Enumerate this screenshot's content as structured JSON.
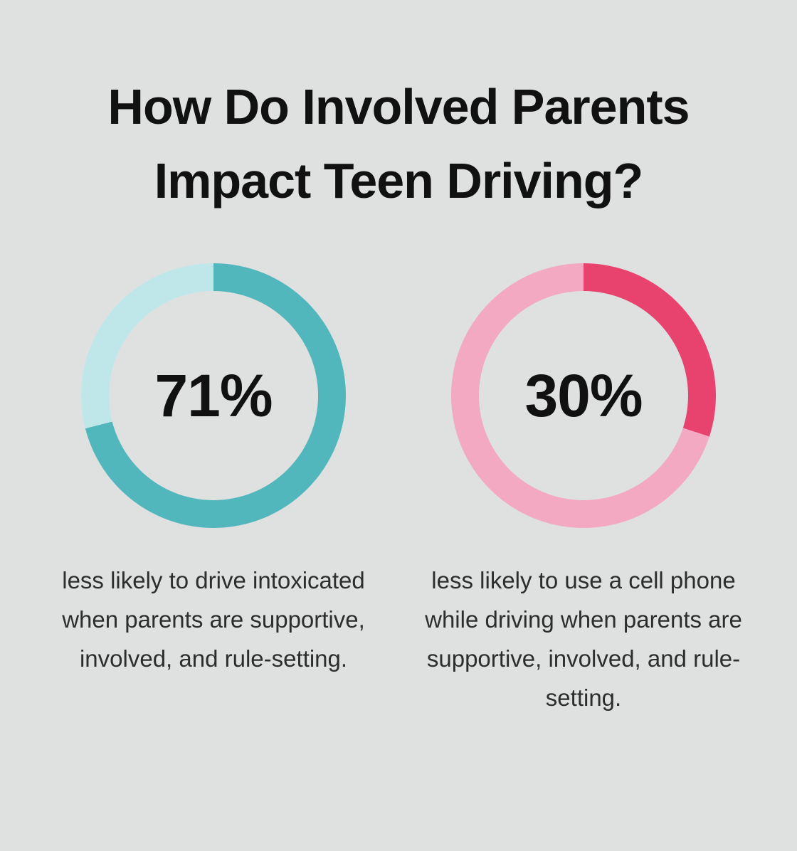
{
  "background_color": "#dfe1e1",
  "title": {
    "text": "How Do Involved Parents Impact Teen Driving?",
    "color": "#111111"
  },
  "chart_data": [
    {
      "type": "pie",
      "subtype": "donut",
      "center_label": "71%",
      "values": [
        71,
        29
      ],
      "colors": [
        "#52b7bc",
        "#bfe6e9"
      ],
      "start_angle": "12 o'clock",
      "direction": "clockwise",
      "ring_thickness_px": 39,
      "caption": "less likely to drive intoxicated when parents are supportive, involved, and rule-setting."
    },
    {
      "type": "pie",
      "subtype": "donut",
      "center_label": "30%",
      "values": [
        30,
        70
      ],
      "colors": [
        "#e8436f",
        "#f3a9c1"
      ],
      "start_angle": "12 o'clock",
      "direction": "clockwise",
      "ring_thickness_px": 39,
      "caption": "less likely to use a cell phone while driving when parents are supportive, involved, and rule-setting."
    }
  ],
  "text_color_caption": "#2d2d2d"
}
